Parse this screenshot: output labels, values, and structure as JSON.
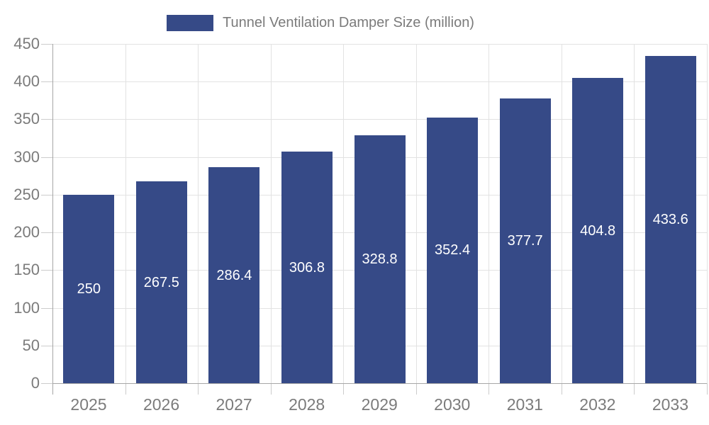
{
  "chart_data": {
    "type": "bar",
    "title": "Tunnel Ventilation Damper Size (million)",
    "categories": [
      "2025",
      "2026",
      "2027",
      "2028",
      "2029",
      "2030",
      "2031",
      "2032",
      "2033"
    ],
    "values": [
      250,
      267.5,
      286.4,
      306.8,
      328.8,
      352.4,
      377.7,
      404.8,
      433.6
    ],
    "value_labels": [
      "250",
      "267.5",
      "286.4",
      "306.8",
      "328.8",
      "352.4",
      "377.7",
      "404.8",
      "433.6"
    ],
    "xlabel": "",
    "ylabel": "",
    "ylim": [
      0,
      450
    ],
    "ytick_step": 50,
    "ytick_labels": [
      "0",
      "50",
      "100",
      "150",
      "200",
      "250",
      "300",
      "350",
      "400",
      "450"
    ],
    "grid": true,
    "legend_position": "top",
    "colors": {
      "bar": "#364A87",
      "gridline": "#e2e2e2",
      "axis_line": "#a6a6a6",
      "tick_mark": "#cccccc",
      "axis_text": "#7b7b7b",
      "legend_text": "#7b7b7b",
      "value_label_text": "#ffffff",
      "background": "#ffffff"
    }
  }
}
